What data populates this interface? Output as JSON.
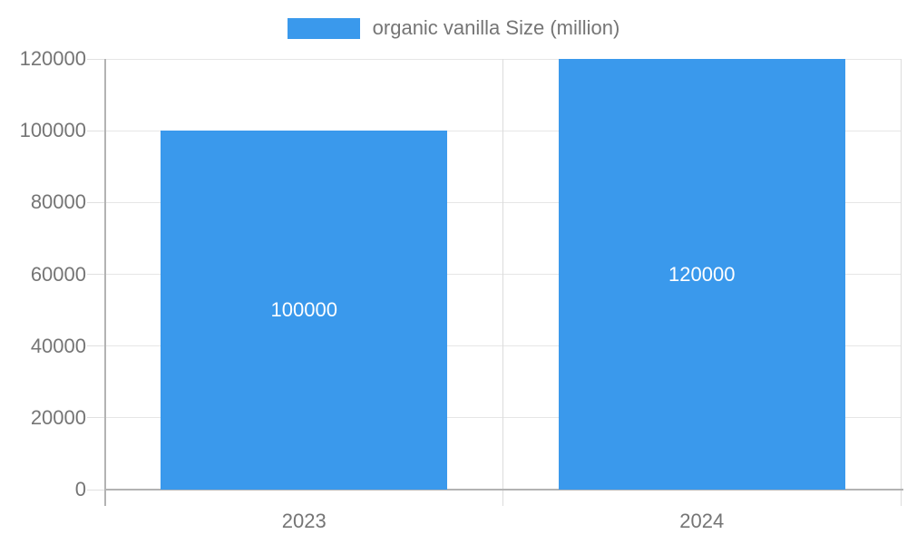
{
  "legend": {
    "label": "organic vanilla Size (million)"
  },
  "chart_data": {
    "type": "bar",
    "title": "",
    "categories": [
      "2023",
      "2024"
    ],
    "series": [
      {
        "name": "organic vanilla Size (million)",
        "values": [
          100000,
          120000
        ],
        "data_labels": [
          "100000",
          "120000"
        ]
      }
    ],
    "xlabel": "",
    "ylabel": "",
    "ylim": [
      0,
      120000
    ],
    "yticks": [
      0,
      20000,
      40000,
      60000,
      80000,
      100000,
      120000
    ],
    "ytick_labels": [
      "0",
      "20000",
      "40000",
      "60000",
      "80000",
      "100000",
      "120000"
    ],
    "grid": "on",
    "legend_position": "top",
    "colors": {
      "bar": "#3a99ec",
      "gridline": "#e6e6e6",
      "axis_line": "#b3b3b3",
      "tick_label": "#757575",
      "bar_value_label": "#ffffff",
      "background": "#ffffff"
    }
  }
}
